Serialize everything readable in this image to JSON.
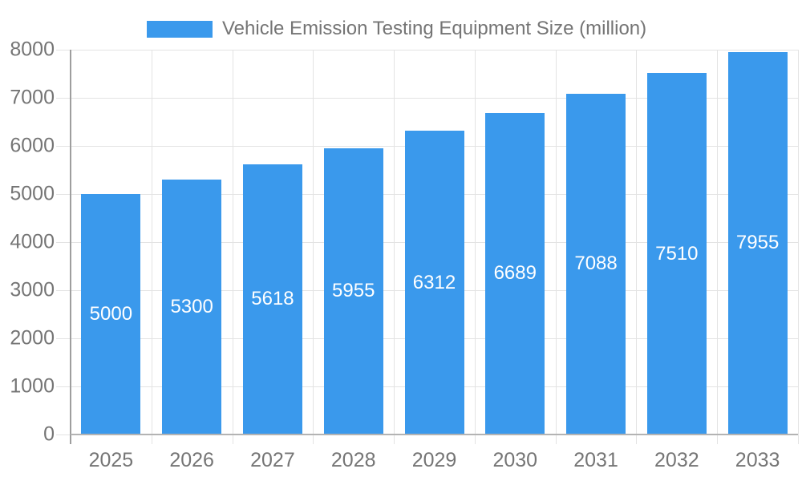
{
  "chart_data": {
    "type": "bar",
    "title": "Vehicle Emission Testing Equipment Size (million)",
    "legend": {
      "label": "Vehicle Emission Testing Equipment Size (million)",
      "position": "top"
    },
    "categories": [
      "2025",
      "2026",
      "2027",
      "2028",
      "2029",
      "2030",
      "2031",
      "2032",
      "2033"
    ],
    "values": [
      5000,
      5300,
      5618,
      5955,
      6312,
      6689,
      7088,
      7510,
      7955
    ],
    "value_labels": [
      "5000",
      "5300",
      "5618",
      "5955",
      "6312",
      "6689",
      "7088",
      "7510",
      "7955"
    ],
    "xlabel": "",
    "ylabel": "",
    "ylim": [
      0,
      8000
    ],
    "yticks": [
      0,
      1000,
      2000,
      3000,
      4000,
      5000,
      6000,
      7000,
      8000
    ],
    "grid": true,
    "value_labels_position": "inside-center",
    "colors": {
      "bar": "#3A99EC",
      "grid": "#E3E3E3",
      "axis_y": "#9E9E9E",
      "axis_x": "#B3B3B3",
      "text": "#757575",
      "value_text": "#FFFFFF",
      "background": "#FFFFFF"
    }
  }
}
